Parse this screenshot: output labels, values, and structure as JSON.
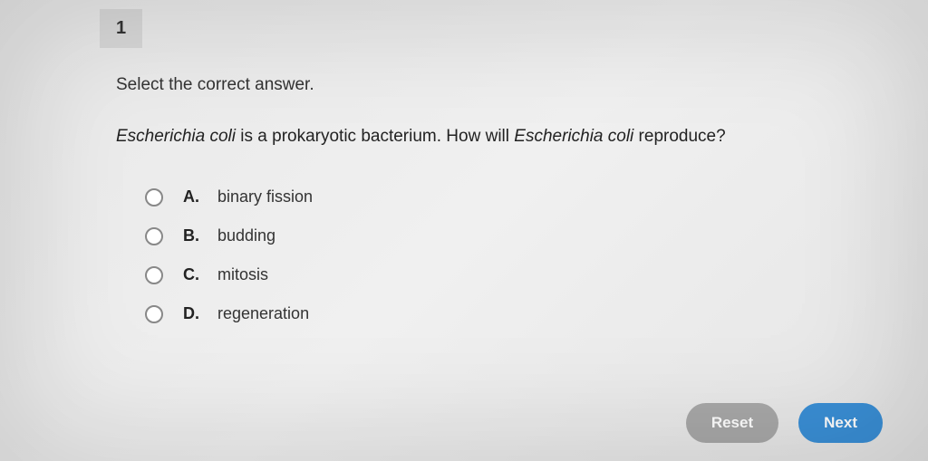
{
  "question": {
    "number": "1",
    "instruction": "Select the correct answer.",
    "text_prefix": "Escherichia coli",
    "text_middle": " is a prokaryotic bacterium. How will ",
    "text_italic2": "Escherichia coli",
    "text_suffix": " reproduce?"
  },
  "options": [
    {
      "letter": "A.",
      "text": "binary fission"
    },
    {
      "letter": "B.",
      "text": "budding"
    },
    {
      "letter": "C.",
      "text": "mitosis"
    },
    {
      "letter": "D.",
      "text": "regeneration"
    }
  ],
  "buttons": {
    "reset": "Reset",
    "next": "Next"
  },
  "colors": {
    "reset_bg": "#a8a8a8",
    "next_bg": "#3a8fd6",
    "number_box_bg": "#d8d8d8",
    "radio_border": "#888888"
  }
}
